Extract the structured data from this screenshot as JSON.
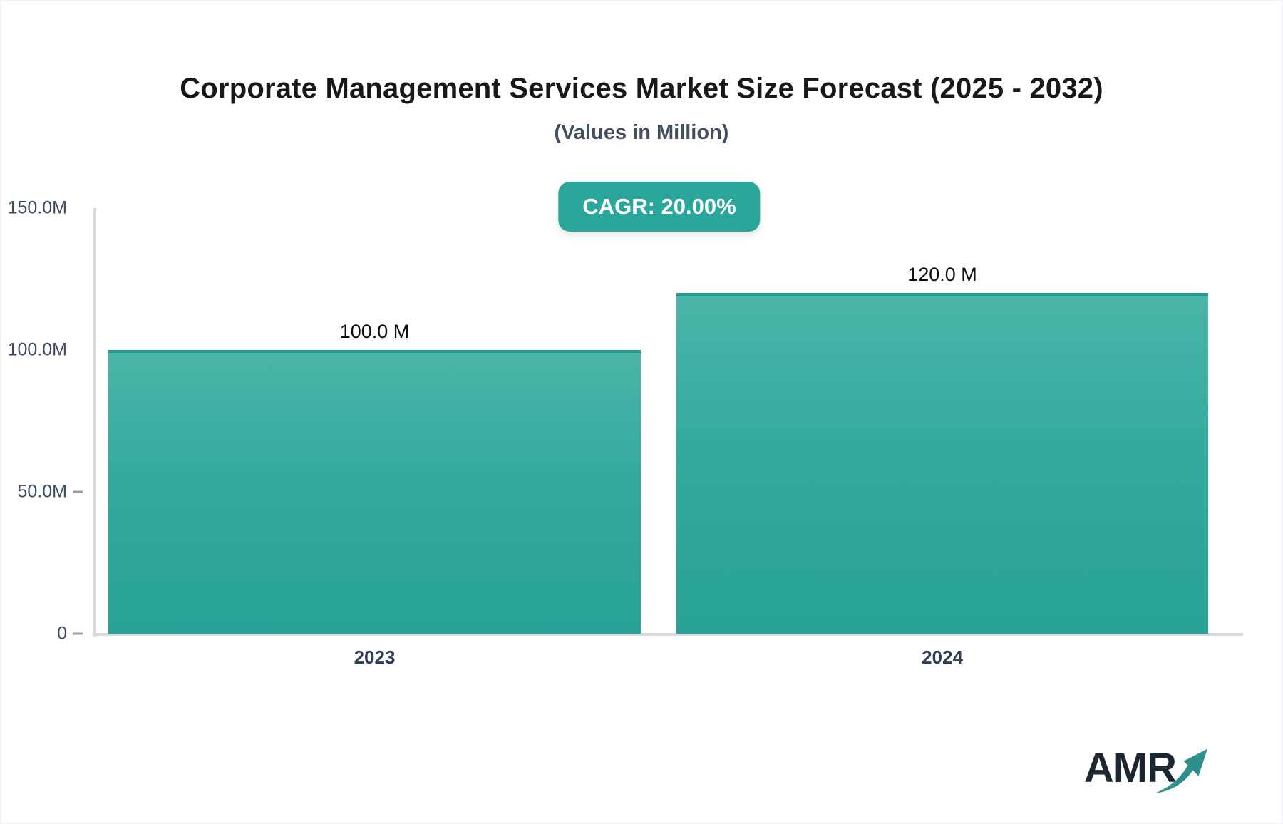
{
  "chart": {
    "title": "Corporate Management Services Market Size Forecast (2025 - 2032)",
    "subtitle": "(Values in Million)",
    "cagr_badge_label": "CAGR: 20.00%"
  },
  "chart_data": {
    "type": "bar",
    "title": "Corporate Management Services Market Size Forecast (2025 - 2032)",
    "subtitle": "(Values in Million)",
    "unit": "Million",
    "categories": [
      "2023",
      "2024"
    ],
    "values": [
      100.0,
      120.0
    ],
    "value_labels": [
      "100.0 M",
      "120.0 M"
    ],
    "cagr_percent": "20.00%",
    "ylim": [
      0,
      150
    ],
    "yticks": [
      {
        "value": 150,
        "label": "150.0M",
        "dash": false
      },
      {
        "value": 100,
        "label": "100.0M",
        "dash": false
      },
      {
        "value": 50,
        "label": "50.0M",
        "dash": true
      },
      {
        "value": 0,
        "label": "0",
        "dash": true
      }
    ],
    "grid": false,
    "legend": false,
    "colors": {
      "bar_top": "#4bb5a9",
      "bar_bottom": "#28a296",
      "bar_cap": "#24998e",
      "axis_line": "#d6dae1",
      "badge_bg": "#2aa69b",
      "badge_text": "#ffffff",
      "title_text": "#17181a",
      "subtitle_text": "#414e5e",
      "tick_text": "#3a4a5f"
    }
  },
  "logo": {
    "text": "AMR",
    "icon": "trend-up-arrow-icon",
    "text_color": "#1d2731",
    "arrow_color": "#2e8f8c"
  }
}
